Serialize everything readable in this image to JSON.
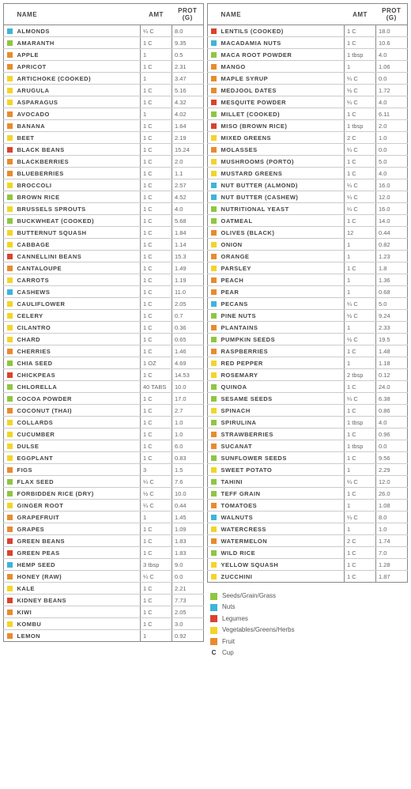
{
  "headers": {
    "name": "NAME",
    "amt": "AMT",
    "prot": "PROT (G)"
  },
  "categories": {
    "seeds": {
      "label": "Seeds/Grain/Grass",
      "color": "#8fc642"
    },
    "nuts": {
      "label": "Nuts",
      "color": "#3fb4d8"
    },
    "legumes": {
      "label": "Legumes",
      "color": "#d94330"
    },
    "veg": {
      "label": "Vegetables/Greens/Herbs",
      "color": "#f2d528"
    },
    "fruit": {
      "label": "Fruit",
      "color": "#e88b2e"
    }
  },
  "cup_note": {
    "symbol": "C",
    "label": "Cup"
  },
  "left": [
    {
      "cat": "nuts",
      "name": "ALMONDS",
      "amt": "¼ C",
      "prot": "8.0"
    },
    {
      "cat": "seeds",
      "name": "AMARANTH",
      "amt": "1 C",
      "prot": "9.35"
    },
    {
      "cat": "fruit",
      "name": "APPLE",
      "amt": "1",
      "prot": "0.5"
    },
    {
      "cat": "fruit",
      "name": "APRICOT",
      "amt": "1 C",
      "prot": "2.31"
    },
    {
      "cat": "veg",
      "name": "ARTICHOKE (COOKED)",
      "amt": "1",
      "prot": "3.47"
    },
    {
      "cat": "veg",
      "name": "ARUGULA",
      "amt": "1 C",
      "prot": "5.16"
    },
    {
      "cat": "veg",
      "name": "ASPARAGUS",
      "amt": "1 C",
      "prot": "4.32"
    },
    {
      "cat": "fruit",
      "name": "AVOCADO",
      "amt": "1",
      "prot": "4.02"
    },
    {
      "cat": "fruit",
      "name": "BANANA",
      "amt": "1 C",
      "prot": "1.64"
    },
    {
      "cat": "veg",
      "name": "BEET",
      "amt": "1 C",
      "prot": "2.19"
    },
    {
      "cat": "legumes",
      "name": "BLACK BEANS",
      "amt": "1 C",
      "prot": "15.24"
    },
    {
      "cat": "fruit",
      "name": "BLACKBERRIES",
      "amt": "1 C",
      "prot": "2.0"
    },
    {
      "cat": "fruit",
      "name": "BLUEBERRIES",
      "amt": "1 C",
      "prot": "1.1"
    },
    {
      "cat": "veg",
      "name": "BROCCOLI",
      "amt": "1 C",
      "prot": "2.57"
    },
    {
      "cat": "seeds",
      "name": "BROWN RICE",
      "amt": "1 C",
      "prot": "4.52"
    },
    {
      "cat": "veg",
      "name": "BRUSSELS SPROUTS",
      "amt": "1 C",
      "prot": "4.0"
    },
    {
      "cat": "seeds",
      "name": "BUCKWHEAT (COOKED)",
      "amt": "1 C",
      "prot": "5.68"
    },
    {
      "cat": "veg",
      "name": "BUTTERNUT SQUASH",
      "amt": "1 C",
      "prot": "1.84"
    },
    {
      "cat": "veg",
      "name": "CABBAGE",
      "amt": "1 C",
      "prot": "1.14"
    },
    {
      "cat": "legumes",
      "name": "CANNELLINI BEANS",
      "amt": "1 C",
      "prot": "15.3"
    },
    {
      "cat": "fruit",
      "name": "CANTALOUPE",
      "amt": "1 C",
      "prot": "1.49"
    },
    {
      "cat": "veg",
      "name": "CARROTS",
      "amt": "1 C",
      "prot": "1.19"
    },
    {
      "cat": "nuts",
      "name": "CASHEWS",
      "amt": "1 C",
      "prot": "11.0"
    },
    {
      "cat": "veg",
      "name": "CAULIFLOWER",
      "amt": "1 C",
      "prot": "2.05"
    },
    {
      "cat": "veg",
      "name": "CELERY",
      "amt": "1 C",
      "prot": "0.7"
    },
    {
      "cat": "veg",
      "name": "CILANTRO",
      "amt": "1 C",
      "prot": "0.36"
    },
    {
      "cat": "veg",
      "name": "CHARD",
      "amt": "1 C",
      "prot": "0.65"
    },
    {
      "cat": "fruit",
      "name": "CHERRIES",
      "amt": "1 C",
      "prot": "1.46"
    },
    {
      "cat": "seeds",
      "name": "CHIA SEED",
      "amt": "1 OZ",
      "prot": "4.69"
    },
    {
      "cat": "legumes",
      "name": "CHICKPEAS",
      "amt": "1 C",
      "prot": "14.53"
    },
    {
      "cat": "seeds",
      "name": "CHLORELLA",
      "amt": "40 TABS",
      "prot": "10.0"
    },
    {
      "cat": "seeds",
      "name": "COCOA POWDER",
      "amt": "1 C",
      "prot": "17.0"
    },
    {
      "cat": "fruit",
      "name": "COCONUT (THAI)",
      "amt": "1 C",
      "prot": "2.7"
    },
    {
      "cat": "veg",
      "name": "COLLARDS",
      "amt": "1 C",
      "prot": "1.0"
    },
    {
      "cat": "veg",
      "name": "CUCUMBER",
      "amt": "1 C",
      "prot": "1.0"
    },
    {
      "cat": "veg",
      "name": "DULSE",
      "amt": "1 C",
      "prot": "6.0"
    },
    {
      "cat": "veg",
      "name": "EGGPLANT",
      "amt": "1 C",
      "prot": "0.83"
    },
    {
      "cat": "fruit",
      "name": "FIGS",
      "amt": "3",
      "prot": "1.5"
    },
    {
      "cat": "seeds",
      "name": "FLAX SEED",
      "amt": "¼ C",
      "prot": "7.6"
    },
    {
      "cat": "seeds",
      "name": "FORBIDDEN RICE (DRY)",
      "amt": "½ C",
      "prot": "10.0"
    },
    {
      "cat": "veg",
      "name": "GINGER ROOT",
      "amt": "¼ C",
      "prot": "0.44"
    },
    {
      "cat": "fruit",
      "name": "GRAPEFRUIT",
      "amt": "1",
      "prot": "1.45"
    },
    {
      "cat": "fruit",
      "name": "GRAPES",
      "amt": "1 C",
      "prot": "1.09"
    },
    {
      "cat": "legumes",
      "name": "GREEN BEANS",
      "amt": "1 C",
      "prot": "1.83"
    },
    {
      "cat": "legumes",
      "name": "GREEN PEAS",
      "amt": "1 C",
      "prot": "1.83"
    },
    {
      "cat": "nuts",
      "name": "HEMP SEED",
      "amt": "3 tbsp",
      "prot": "9.0"
    },
    {
      "cat": "fruit",
      "name": "HONEY (RAW)",
      "amt": "¼ C",
      "prot": "0.0"
    },
    {
      "cat": "veg",
      "name": "KALE",
      "amt": "1 C",
      "prot": "2.21"
    },
    {
      "cat": "legumes",
      "name": "KIDNEY BEANS",
      "amt": "1 C",
      "prot": "7.73"
    },
    {
      "cat": "fruit",
      "name": "KIWI",
      "amt": "1 C",
      "prot": "2.05"
    },
    {
      "cat": "veg",
      "name": "KOMBU",
      "amt": "1 C",
      "prot": "3.0"
    },
    {
      "cat": "fruit",
      "name": "LEMON",
      "amt": "1",
      "prot": "0.92"
    }
  ],
  "right": [
    {
      "cat": "legumes",
      "name": "LENTILS (COOKED)",
      "amt": "1 C",
      "prot": "18.0"
    },
    {
      "cat": "nuts",
      "name": "MACADAMIA NUTS",
      "amt": "1 C",
      "prot": "10.6"
    },
    {
      "cat": "seeds",
      "name": "MACA ROOT POWDER",
      "amt": "1 tbsp",
      "prot": "4.0"
    },
    {
      "cat": "fruit",
      "name": "MANGO",
      "amt": "1",
      "prot": "1.06"
    },
    {
      "cat": "fruit",
      "name": "MAPLE SYRUP",
      "amt": "¼ C",
      "prot": "0.0"
    },
    {
      "cat": "fruit",
      "name": "MEDJOOL DATES",
      "amt": "½ C",
      "prot": "1.72"
    },
    {
      "cat": "legumes",
      "name": "MESQUITE POWDER",
      "amt": "¼ C",
      "prot": "4.0"
    },
    {
      "cat": "seeds",
      "name": "MILLET (COOKED)",
      "amt": "1 C",
      "prot": "6.11"
    },
    {
      "cat": "legumes",
      "name": "MISO (BROWN RICE)",
      "amt": "1 tbsp",
      "prot": "2.0"
    },
    {
      "cat": "veg",
      "name": "MIXED GREENS",
      "amt": "2 C",
      "prot": "1.0"
    },
    {
      "cat": "fruit",
      "name": "MOLASSES",
      "amt": "¼ C",
      "prot": "0.0"
    },
    {
      "cat": "veg",
      "name": "MUSHROOMS (PORTO)",
      "amt": "1 C",
      "prot": "5.0"
    },
    {
      "cat": "veg",
      "name": "MUSTARD GREENS",
      "amt": "1 C",
      "prot": "4.0"
    },
    {
      "cat": "nuts",
      "name": "NUT BUTTER (ALMOND)",
      "amt": "¼ C",
      "prot": "16.0"
    },
    {
      "cat": "nuts",
      "name": "NUT BUTTER (CASHEW)",
      "amt": "¼ C",
      "prot": "12.0"
    },
    {
      "cat": "seeds",
      "name": "NUTRITIONAL YEAST",
      "amt": "¼ C",
      "prot": "16.0"
    },
    {
      "cat": "seeds",
      "name": "OATMEAL",
      "amt": "1 C",
      "prot": "14.0"
    },
    {
      "cat": "fruit",
      "name": "OLIVES (BLACK)",
      "amt": "12",
      "prot": "0.44"
    },
    {
      "cat": "veg",
      "name": "ONION",
      "amt": "1",
      "prot": "0.82"
    },
    {
      "cat": "fruit",
      "name": "ORANGE",
      "amt": "1",
      "prot": "1.23"
    },
    {
      "cat": "veg",
      "name": "PARSLEY",
      "amt": "1 C",
      "prot": "1.8"
    },
    {
      "cat": "fruit",
      "name": "PEACH",
      "amt": "1",
      "prot": "1.36"
    },
    {
      "cat": "fruit",
      "name": "PEAR",
      "amt": "1",
      "prot": "0.68"
    },
    {
      "cat": "nuts",
      "name": "PECANS",
      "amt": "¼ C",
      "prot": "5.0"
    },
    {
      "cat": "seeds",
      "name": "PINE NUTS",
      "amt": "½ C",
      "prot": "9.24"
    },
    {
      "cat": "fruit",
      "name": "PLANTAINS",
      "amt": "1",
      "prot": "2.33"
    },
    {
      "cat": "seeds",
      "name": "PUMPKIN SEEDS",
      "amt": "½ C",
      "prot": "19.5"
    },
    {
      "cat": "fruit",
      "name": "RASPBERRIES",
      "amt": "1 C",
      "prot": "1.48"
    },
    {
      "cat": "veg",
      "name": "RED PEPPER",
      "amt": "1",
      "prot": "1.18"
    },
    {
      "cat": "veg",
      "name": "ROSEMARY",
      "amt": "2 tbsp",
      "prot": "0.12"
    },
    {
      "cat": "seeds",
      "name": "QUINOA",
      "amt": "1 C",
      "prot": "24.0"
    },
    {
      "cat": "seeds",
      "name": "SESAME SEEDS",
      "amt": "¼ C",
      "prot": "6.38"
    },
    {
      "cat": "veg",
      "name": "SPINACH",
      "amt": "1 C",
      "prot": "0.86"
    },
    {
      "cat": "seeds",
      "name": "SPIRULINA",
      "amt": "1 tbsp",
      "prot": "4.0"
    },
    {
      "cat": "fruit",
      "name": "STRAWBERRIES",
      "amt": "1 C",
      "prot": "0.96"
    },
    {
      "cat": "fruit",
      "name": "SUCANAT",
      "amt": "1 tbsp",
      "prot": "0.0"
    },
    {
      "cat": "seeds",
      "name": "SUNFLOWER SEEDS",
      "amt": "1 C",
      "prot": "9.56"
    },
    {
      "cat": "veg",
      "name": "SWEET POTATO",
      "amt": "1",
      "prot": "2.29"
    },
    {
      "cat": "seeds",
      "name": "TAHINI",
      "amt": "¼ C",
      "prot": "12.0"
    },
    {
      "cat": "seeds",
      "name": "TEFF GRAIN",
      "amt": "1 C",
      "prot": "26.0"
    },
    {
      "cat": "fruit",
      "name": "TOMATOES",
      "amt": "1",
      "prot": "1.08"
    },
    {
      "cat": "nuts",
      "name": "WALNUTS",
      "amt": "¼ C",
      "prot": "8.0"
    },
    {
      "cat": "veg",
      "name": "WATERCRESS",
      "amt": "1",
      "prot": "1.0"
    },
    {
      "cat": "fruit",
      "name": "WATERMELON",
      "amt": "2 C",
      "prot": "1.74"
    },
    {
      "cat": "seeds",
      "name": "WILD RICE",
      "amt": "1 C",
      "prot": "7.0"
    },
    {
      "cat": "veg",
      "name": "YELLOW SQUASH",
      "amt": "1 C",
      "prot": "1.28"
    },
    {
      "cat": "veg",
      "name": "ZUCCHINI",
      "amt": "1 C",
      "prot": "1.87"
    }
  ],
  "legend_order": [
    "seeds",
    "nuts",
    "legumes",
    "veg",
    "fruit"
  ]
}
